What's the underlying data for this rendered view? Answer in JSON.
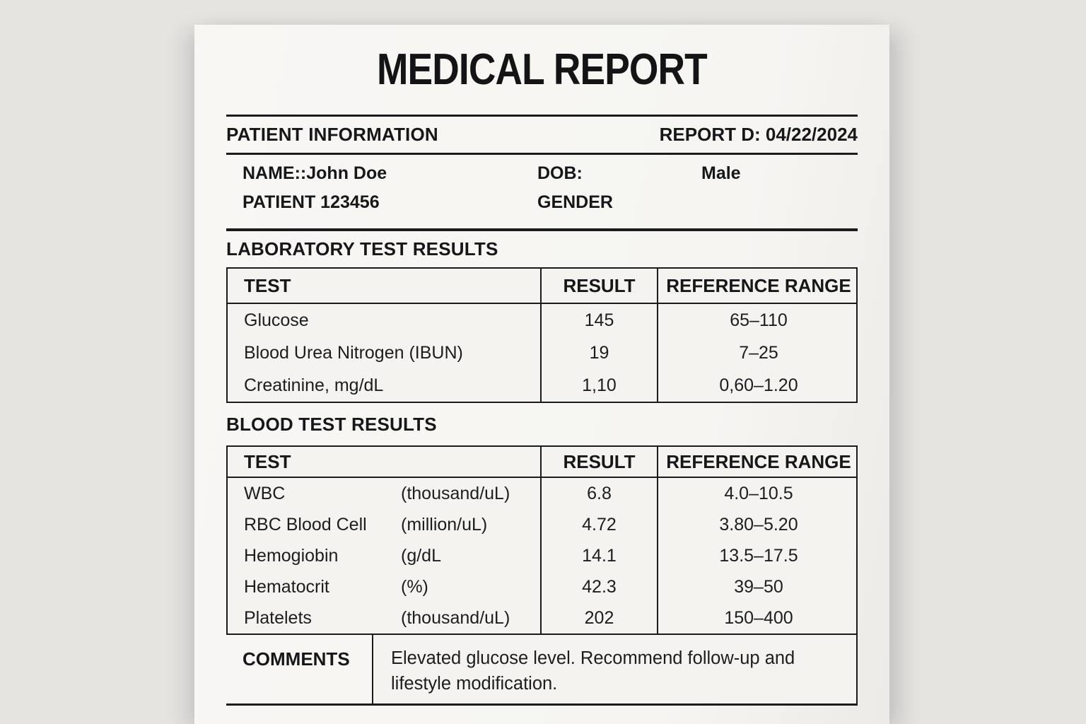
{
  "page": {
    "title": "MEDICAL REPORT"
  },
  "patient_info": {
    "section_title": "PATIENT INFORMATION",
    "report_date": "REPORT D: 04/22/2024",
    "name_line": "NAME::John Doe",
    "patient_line": "PATIENT 123456",
    "dob_label": "DOB:",
    "gender_label": "GENDER",
    "gender_value": "Male"
  },
  "lab_results": {
    "section_title": "LABORATORY TEST RESULTS",
    "headers": {
      "test": "TEST",
      "result": "RESULT",
      "range": "REFERENCE RANGE"
    },
    "rows": [
      {
        "test": "Glucose",
        "result": "145",
        "range": "65–110"
      },
      {
        "test": "Blood Urea Nitrogen (IBUN)",
        "result": "19",
        "range": "7–25"
      },
      {
        "test": "Creatinine, mg/dL",
        "result": "1,10",
        "range": "0,60–1.20"
      }
    ]
  },
  "blood_results": {
    "section_title": "BLOOD TEST RESULTS",
    "headers": {
      "test": "TEST",
      "result": "RESULT",
      "range": "REFERENCE RANGE"
    },
    "rows": [
      {
        "test": "WBC",
        "unit": "(thousand/uL)",
        "result": "6.8",
        "range": "4.0–10.5"
      },
      {
        "test": "RBC Blood Cell",
        "unit": "(million/uL)",
        "result": "4.72",
        "range": "3.80–5.20"
      },
      {
        "test": "Hemogiobin",
        "unit": "(g/dL",
        "result": "14.1",
        "range": "13.5–17.5"
      },
      {
        "test": "Hematocrit",
        "unit": "(%)",
        "result": "42.3",
        "range": "39–50"
      },
      {
        "test": "Platelets",
        "unit": "(thousand/uL)",
        "result": "202",
        "range": "150–400"
      }
    ]
  },
  "comments": {
    "label": "COMMENTS",
    "text": "Elevated glucose level. Recommend follow-up and lifestyle modification."
  },
  "colors": {
    "background": "#e5e4e1",
    "paper": "#f7f6f3",
    "ink": "#17171a",
    "border": "#1b1b1e"
  }
}
